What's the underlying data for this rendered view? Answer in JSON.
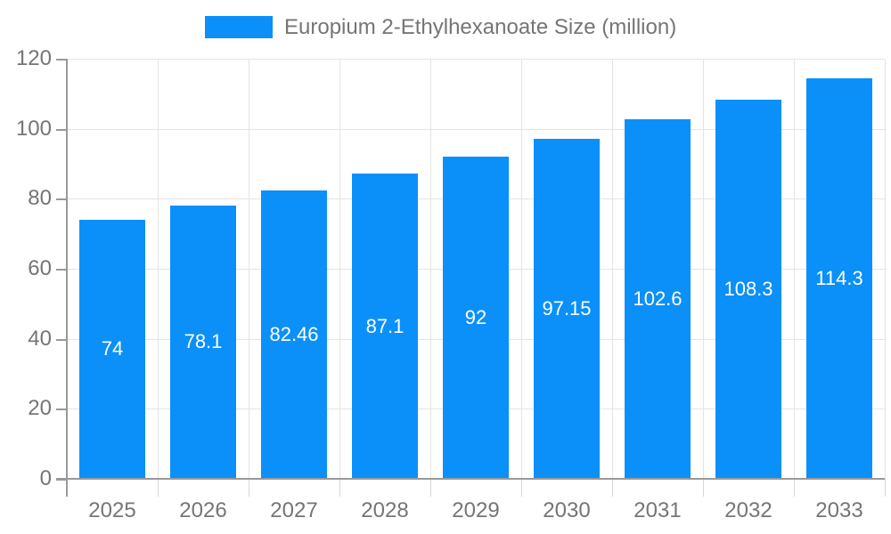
{
  "legend": {
    "label": "Europium 2-Ethylhexanoate Size (million)"
  },
  "chart_data": {
    "type": "bar",
    "title": "Europium 2-Ethylhexanoate Size (million)",
    "categories": [
      "2025",
      "2026",
      "2027",
      "2028",
      "2029",
      "2030",
      "2031",
      "2032",
      "2033"
    ],
    "values": [
      74,
      78.1,
      82.46,
      87.1,
      92,
      97.15,
      102.6,
      108.3,
      114.3
    ],
    "value_labels": [
      "74",
      "78.1",
      "82.46",
      "87.1",
      "92",
      "97.15",
      "102.6",
      "108.3",
      "114.3"
    ],
    "xlabel": "",
    "ylabel": "",
    "ylim": [
      0,
      120
    ],
    "yticks": [
      0,
      20,
      40,
      60,
      80,
      100,
      120
    ],
    "grid": true,
    "legend_position": "top",
    "value_label_position": "inside-center",
    "colors": {
      "bar": "#0b90f9",
      "grid": "#e4e4e4",
      "axis": "#999999",
      "minor_tick": "#d6d6d6",
      "text": "#757575",
      "value_label": "#ffffff",
      "background": "#ffffff"
    }
  }
}
